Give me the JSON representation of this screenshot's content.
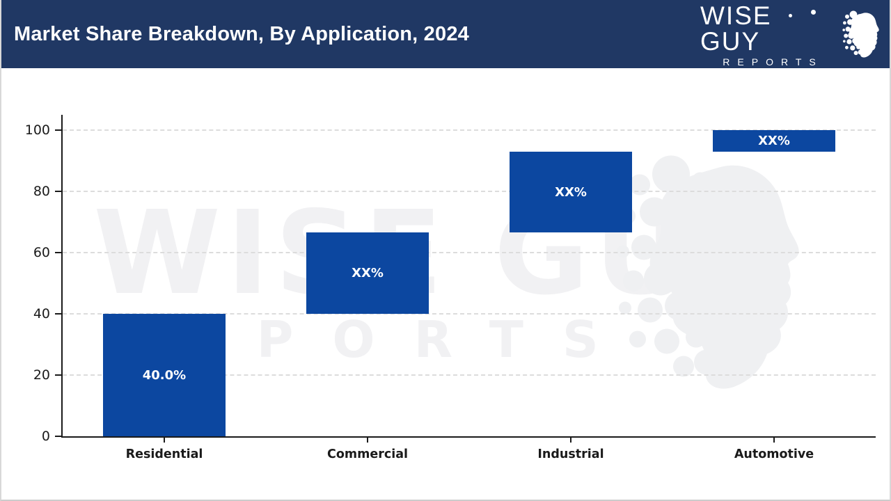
{
  "header": {
    "title": "Market Share Breakdown, By Application, 2024",
    "bg_color": "#203864",
    "logo": {
      "wordmark": "WISE GUY",
      "subtext": "REPORTS"
    }
  },
  "watermark": {
    "line1": "WISE GUY",
    "line2": "REPORTS"
  },
  "chart_data": {
    "type": "bar",
    "subtype": "waterfall",
    "title": "Market Share Breakdown, By Application, 2024",
    "categories": [
      "Residential",
      "Commercial",
      "Industrial",
      "Automotive"
    ],
    "segments": [
      {
        "category": "Residential",
        "start": 0,
        "end": 40,
        "label": "40.0%"
      },
      {
        "category": "Commercial",
        "start": 40,
        "end": 66.5,
        "label": "XX%"
      },
      {
        "category": "Industrial",
        "start": 66.5,
        "end": 93,
        "label": "XX%"
      },
      {
        "category": "Automotive",
        "start": 93,
        "end": 100,
        "label": "XX%"
      }
    ],
    "xlabel": "",
    "ylabel": "",
    "ylim": [
      0,
      105
    ],
    "yticks": [
      0,
      20,
      40,
      60,
      80,
      100
    ],
    "grid": "horizontal-dashed",
    "legend_position": "none",
    "bar_color": "#0c47a0",
    "bar_label_color": "#ffffff",
    "axis_color": "#1a1a1a",
    "gridline_color": "#dcdcdc"
  }
}
